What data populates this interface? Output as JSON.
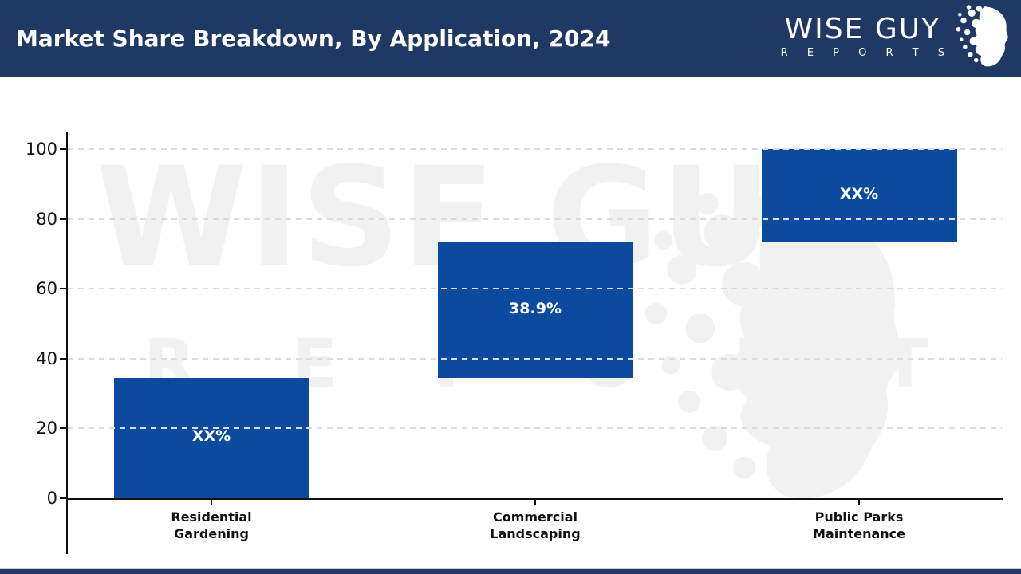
{
  "header": {
    "title": "Market Share Breakdown, By Application, 2024",
    "logo": {
      "wordmark": "WISE GUY",
      "subtext": "R E P O R T S"
    },
    "bg_color": "#1f3864"
  },
  "watermark": {
    "line1": "WISE GUY",
    "line2": "R E P O R T S"
  },
  "colors": {
    "header_bg": "#1f3864",
    "bar": "#0b4a9e",
    "grid": "#dcdcdc",
    "axis": "#111111",
    "bar_label_text": "#ffffff",
    "watermark": "#f1f1f1"
  },
  "chart_data": {
    "type": "bar",
    "variant": "waterfall-segments",
    "title": "Market Share Breakdown, By Application, 2024",
    "categories": [
      [
        "Residential",
        "Gardening"
      ],
      [
        "Commercial",
        "Landscaping"
      ],
      [
        "Public Parks",
        "Maintenance"
      ]
    ],
    "segments": [
      {
        "category": "Residential Gardening",
        "label": "XX%",
        "start": 0,
        "end": 34.5
      },
      {
        "category": "Commercial Landscaping",
        "label": "38.9%",
        "start": 34.5,
        "end": 73.4
      },
      {
        "category": "Public Parks Maintenance",
        "label": "XX%",
        "start": 73.4,
        "end": 100
      }
    ],
    "yticks": [
      0,
      20,
      40,
      60,
      80,
      100
    ],
    "ylim": [
      0,
      105
    ],
    "grid": {
      "axis": "y",
      "style": "dashed",
      "on_top": true
    },
    "legend": "none"
  }
}
